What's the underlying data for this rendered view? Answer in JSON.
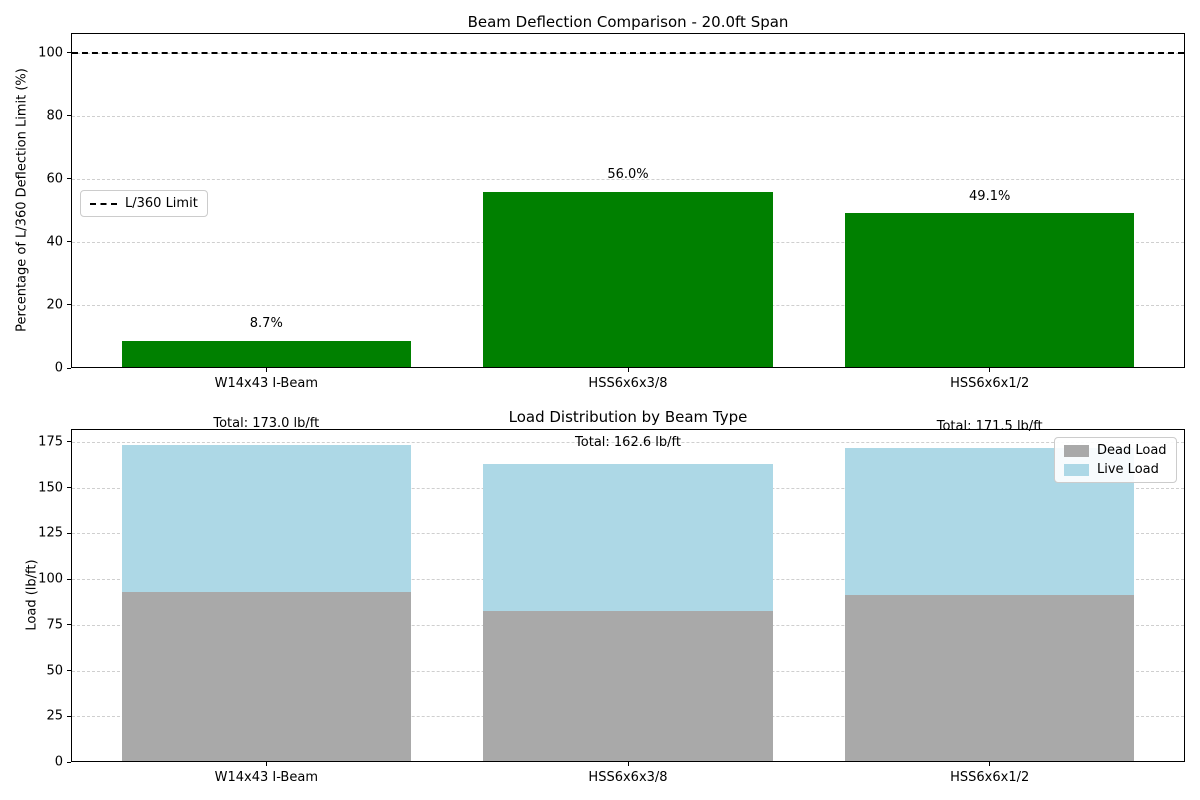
{
  "figure": {
    "background": "#ffffff"
  },
  "chart_data": [
    {
      "type": "bar",
      "title": "Beam Deflection Comparison - 20.0ft Span",
      "ylabel": "Percentage of L/360 Deflection Limit (%)",
      "categories": [
        "W14x43 I-Beam",
        "HSS6x6x3/8",
        "HSS6x6x1/2"
      ],
      "values": [
        8.7,
        56.0,
        49.1
      ],
      "bar_labels": [
        "8.7%",
        "56.0%",
        "49.1%"
      ],
      "bar_color": "#008000",
      "yticks": [
        0,
        20,
        40,
        60,
        80,
        100
      ],
      "ylim": [
        0,
        106.3
      ],
      "grid": "dashed-horizontal",
      "limit_line": {
        "value": 100,
        "style": "dashed",
        "color": "#000000"
      },
      "legend": {
        "position": "middle-left",
        "entries": [
          {
            "label": "L/360 Limit",
            "marker": "dashed-line",
            "color": "#000000"
          }
        ]
      }
    },
    {
      "type": "stacked-bar",
      "title": "Load Distribution by Beam Type",
      "ylabel": "Load (lb/ft)",
      "categories": [
        "W14x43 I-Beam",
        "HSS6x6x3/8",
        "HSS6x6x1/2"
      ],
      "series": [
        {
          "name": "Dead Load",
          "color": "#a9a9a9",
          "values": [
            93.0,
            82.6,
            91.5
          ]
        },
        {
          "name": "Live Load",
          "color": "#add8e6",
          "values": [
            80.0,
            80.0,
            80.0
          ]
        }
      ],
      "totals": [
        173.0,
        162.6,
        171.5
      ],
      "total_labels": [
        "Total: 173.0 lb/ft",
        "Total: 162.6 lb/ft",
        "Total: 171.5 lb/ft"
      ],
      "yticks": [
        0,
        25,
        50,
        75,
        100,
        125,
        150,
        175
      ],
      "ylim": [
        0,
        182
      ],
      "grid": "dashed-horizontal",
      "legend": {
        "position": "top-right",
        "entries": [
          {
            "label": "Dead Load",
            "marker": "patch",
            "color": "#a9a9a9"
          },
          {
            "label": "Live Load",
            "marker": "patch",
            "color": "#add8e6"
          }
        ]
      }
    }
  ]
}
